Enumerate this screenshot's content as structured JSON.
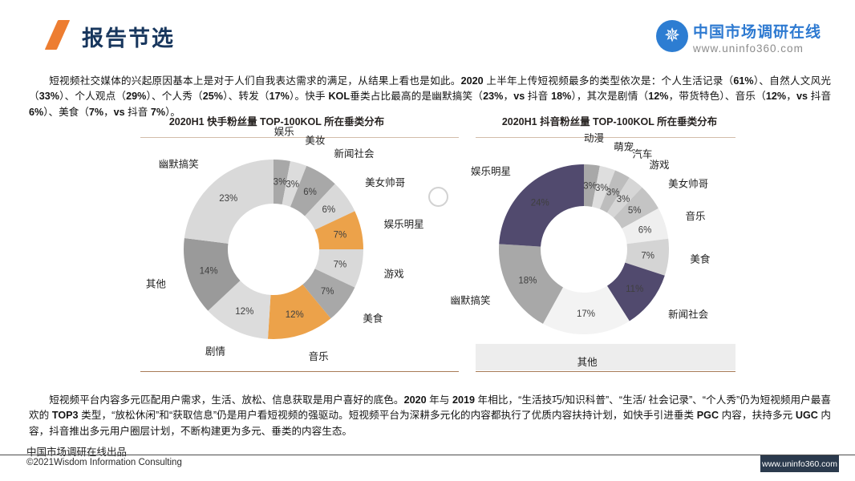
{
  "page": {
    "title": "报告节选",
    "brand": {
      "name": "中国市场调研在线",
      "url": "www.uninfo360.com",
      "icon": "snowflake-compass-icon",
      "icon_glyph": "✵",
      "colors": {
        "icon_bg": "#2d7dd2",
        "name": "#2e7ad1",
        "accent_slash": "#ed7d31",
        "title": "#17365d"
      }
    },
    "paragraph1": [
      {
        "t": "短视频社交媒体的兴起原因基本上是对于人们自我表达需求的满足，从结果上看也是如此。",
        "b": false
      },
      {
        "t": "2020",
        "b": true
      },
      {
        "t": " 上半年上传短视频最多的类型依次是：个人生活记录（",
        "b": false
      },
      {
        "t": "61%",
        "b": true
      },
      {
        "t": "）、自然人文风光（",
        "b": false
      },
      {
        "t": "33%",
        "b": true
      },
      {
        "t": "）、个人观点（",
        "b": false
      },
      {
        "t": "29%",
        "b": true
      },
      {
        "t": "）、个人秀（",
        "b": false
      },
      {
        "t": "25%",
        "b": true
      },
      {
        "t": "）、转发（",
        "b": false
      },
      {
        "t": "17%",
        "b": true
      },
      {
        "t": "）。快手 ",
        "b": false
      },
      {
        "t": "KOL",
        "b": true
      },
      {
        "t": "垂类占比最高的是幽默搞笑（",
        "b": false
      },
      {
        "t": "23%",
        "b": true
      },
      {
        "t": "，",
        "b": false
      },
      {
        "t": "vs",
        "b": true
      },
      {
        "t": " 抖音 ",
        "b": false
      },
      {
        "t": "18%",
        "b": true
      },
      {
        "t": "），其次是剧情（",
        "b": false
      },
      {
        "t": "12%",
        "b": true
      },
      {
        "t": "，带货特色）、音乐（",
        "b": false
      },
      {
        "t": "12%",
        "b": true
      },
      {
        "t": "，",
        "b": false
      },
      {
        "t": "vs",
        "b": true
      },
      {
        "t": " 抖音 ",
        "b": false
      },
      {
        "t": "6%",
        "b": true
      },
      {
        "t": "）、美食（",
        "b": false
      },
      {
        "t": "7%",
        "b": true
      },
      {
        "t": "，",
        "b": false
      },
      {
        "t": "vs",
        "b": true
      },
      {
        "t": " 抖音 ",
        "b": false
      },
      {
        "t": "7%",
        "b": true
      },
      {
        "t": "）。",
        "b": false
      }
    ],
    "paragraph2": [
      {
        "t": "短视频平台内容多元匹配用户需求，生活、放松、信息获取是用户喜好的底色。",
        "b": false
      },
      {
        "t": "2020",
        "b": true
      },
      {
        "t": " 年与 ",
        "b": false
      },
      {
        "t": "2019",
        "b": true
      },
      {
        "t": " 年相比，“生活技巧/知识科普”、“生活/ 社会记录”、“个人秀”仍为短视频用户最喜欢的 ",
        "b": false
      },
      {
        "t": "TOP3",
        "b": true
      },
      {
        "t": " 类型，“放松休闲”和“获取信息”仍是用户看短视频的强驱动。短视频平台为深耕多元化的内容都执行了优质内容扶持计划，如快手引进垂类 ",
        "b": false
      },
      {
        "t": "PGC",
        "b": true
      },
      {
        "t": " 内容，扶持多元 ",
        "b": false
      },
      {
        "t": "UGC",
        "b": true
      },
      {
        "t": " 内容，抖音推出多元用户圈层计划，不断构建更为多元、垂类的内容生态。",
        "b": false
      }
    ],
    "footer": {
      "producer": "中国市场调研在线出品",
      "copyright": "©2021Wisdom Information Consulting",
      "url": "www.uninfo360.com",
      "urlbox_color": "#2b3a4d"
    }
  },
  "chart_data": [
    {
      "type": "pie",
      "subtype": "donut",
      "title": "2020H1 快手粉丝量 TOP-100KOL 所在垂类分布",
      "platform": "快手",
      "start_angle_deg": 0,
      "direction": "clockwise",
      "legend_position": "outside-labels",
      "slices": [
        {
          "label": "娱乐",
          "value": 3,
          "color": "#a8a8a8"
        },
        {
          "label": "美妆",
          "value": 3,
          "color": "#dcdcdc"
        },
        {
          "label": "新闻社会",
          "value": 6,
          "color": "#a8a8a8"
        },
        {
          "label": "美女帅哥",
          "value": 6,
          "color": "#d9d9d9"
        },
        {
          "label": "娱乐明星",
          "value": 7,
          "color": "#eca24a"
        },
        {
          "label": "游戏",
          "value": 7,
          "color": "#d9d9d9"
        },
        {
          "label": "美食",
          "value": 7,
          "color": "#a8a8a8"
        },
        {
          "label": "音乐",
          "value": 12,
          "color": "#eca24a"
        },
        {
          "label": "剧情",
          "value": 12,
          "color": "#dcdcdc"
        },
        {
          "label": "其他",
          "value": 14,
          "color": "#9a9a9a"
        },
        {
          "label": "幽默搞笑",
          "value": 23,
          "color": "#d9d9d9"
        }
      ]
    },
    {
      "type": "pie",
      "subtype": "donut",
      "title": "2020H1 抖音粉丝量 TOP-100KOL 所在垂类分布",
      "platform": "抖音",
      "start_angle_deg": 0,
      "direction": "clockwise",
      "legend_position": "outside-labels",
      "slices": [
        {
          "label": "动漫",
          "value": 3,
          "color": "#a8a8a8"
        },
        {
          "label": "萌宠",
          "value": 3,
          "color": "#dedede"
        },
        {
          "label": "汽车",
          "value": 3,
          "color": "#bdbdbd"
        },
        {
          "label": "游戏",
          "value": 3,
          "color": "#d6d6d6"
        },
        {
          "label": "美女帅哥",
          "value": 5,
          "color": "#c4c4c4"
        },
        {
          "label": "音乐",
          "value": 6,
          "color": "#efefef"
        },
        {
          "label": "美食",
          "value": 7,
          "color": "#d4d4d4"
        },
        {
          "label": "新闻社会",
          "value": 11,
          "color": "#514a6e",
          "pct_color": "#f2f2f2"
        },
        {
          "label": "其他",
          "value": 17,
          "color": "#f3f3f3"
        },
        {
          "label": "幽默搞笑",
          "value": 18,
          "color": "#a8a8a8"
        },
        {
          "label": "娱乐明星",
          "value": 24,
          "color": "#514a6e",
          "pct_color": "#16132b"
        }
      ]
    }
  ]
}
